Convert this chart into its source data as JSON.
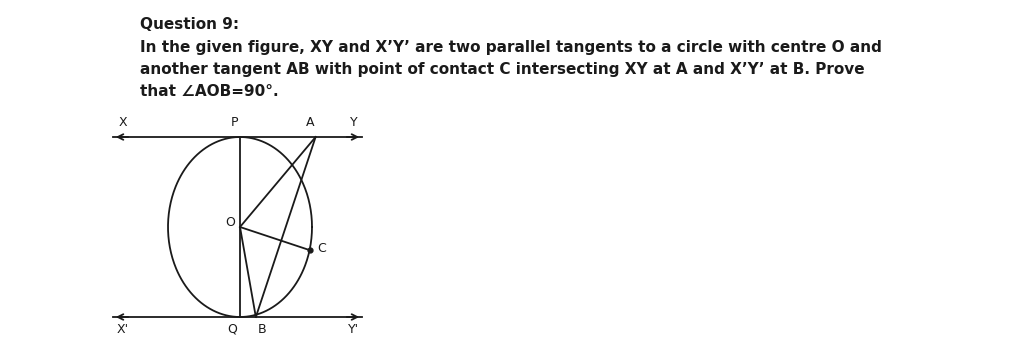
{
  "title": "Question 9:",
  "line1": "In the given figure, XY and X’Y’ are two parallel tangents to a circle with centre O and",
  "line2": "another tangent AB with point of contact C intersecting XY at A and X’Y’ at B. Prove",
  "line3": "that ∠AOB=90°.",
  "bg_color": "#ffffff",
  "line_color": "#1a1a1a",
  "text_color": "#1a1a1a",
  "font_size_title": 11,
  "font_size_body": 11,
  "font_size_label": 9
}
